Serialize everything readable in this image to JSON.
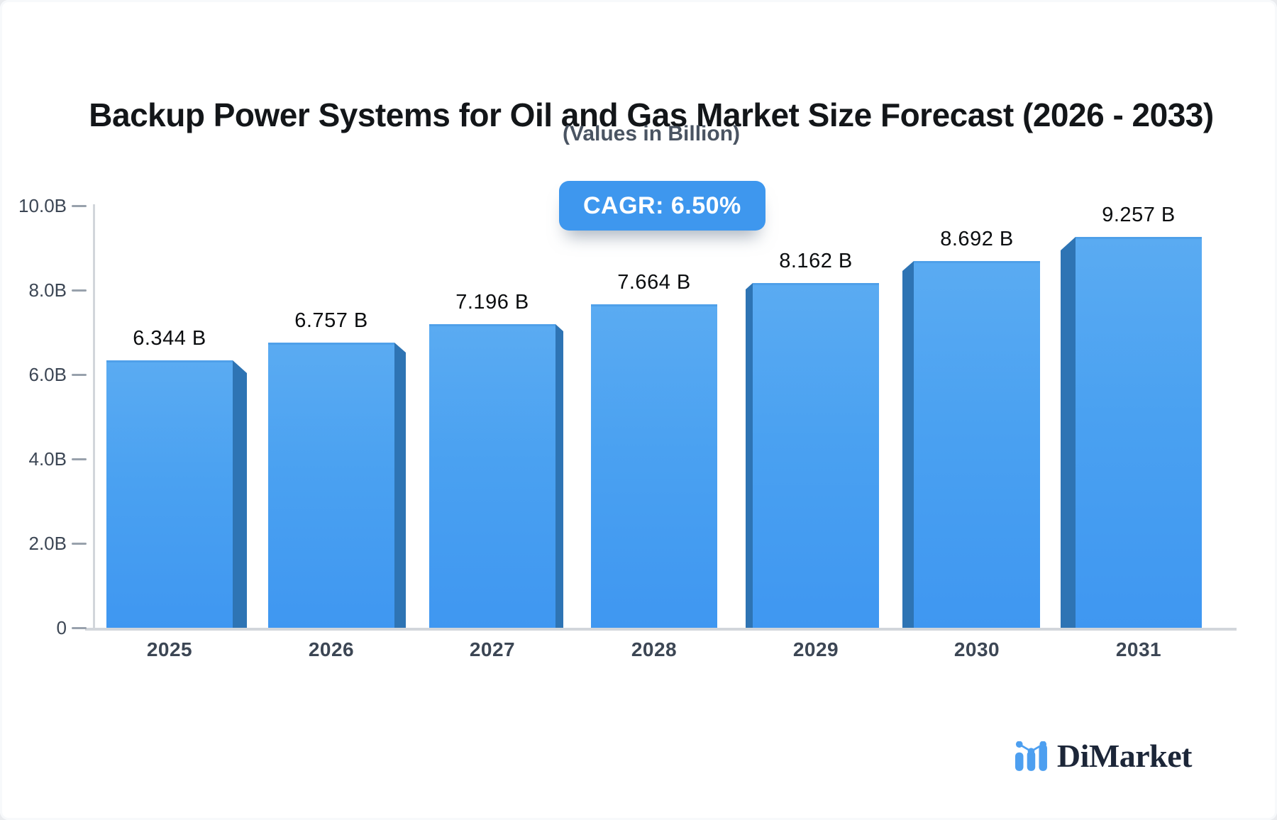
{
  "header": {
    "title": "Backup Power Systems for Oil and Gas Market Size Forecast (2026 - 2033)",
    "subtitle": "(Values in Billion)",
    "cagr_badge": "CAGR: 6.50%"
  },
  "chart_data": {
    "type": "bar",
    "title": "Backup Power Systems for Oil and Gas Market Size Forecast (2026 - 2033)",
    "subtitle": "(Values in Billion)",
    "cagr_text": "CAGR: 6.50%",
    "cagr_percent": 6.5,
    "categories": [
      "2025",
      "2026",
      "2027",
      "2028",
      "2029",
      "2030",
      "2031"
    ],
    "values": [
      6.344,
      6.757,
      7.196,
      7.664,
      8.162,
      8.692,
      9.257
    ],
    "value_labels": [
      "6.344 B",
      "6.757 B",
      "7.196 B",
      "7.664 B",
      "8.162 B",
      "8.692 B",
      "9.257 B"
    ],
    "unit": "Billion",
    "xlabel": "",
    "ylabel": "",
    "ylim": [
      0,
      10
    ],
    "y_ticks": [
      {
        "label": "10.0B",
        "value": 10
      },
      {
        "label": "8.0B",
        "value": 8
      },
      {
        "label": "6.0B",
        "value": 6
      },
      {
        "label": "4.0B",
        "value": 4
      },
      {
        "label": "2.0B",
        "value": 2
      },
      {
        "label": "0",
        "value": 0
      }
    ],
    "grid": false,
    "legend": false,
    "bar_style": "3d-perspective",
    "colors": {
      "bar_face_top": "#5AABF2",
      "bar_face_bottom": "#3F97F1",
      "bar_side": "#2E74B4",
      "badge_background": "#3E97EE",
      "badge_text": "#FFFFFF",
      "axis_line": "#D2D6DB",
      "tick_mark": "#98A1AC",
      "axis_text": "#3C4654",
      "value_text": "#0B0D0F",
      "title_text": "#131619",
      "subtitle_text": "#4A5462",
      "brand_navy": "#1C2638",
      "brand_blue": "#4D9FF0"
    }
  },
  "footer": {
    "brand": "DiMarket",
    "logo_icon": "bar-chart-trend-logo-icon"
  }
}
